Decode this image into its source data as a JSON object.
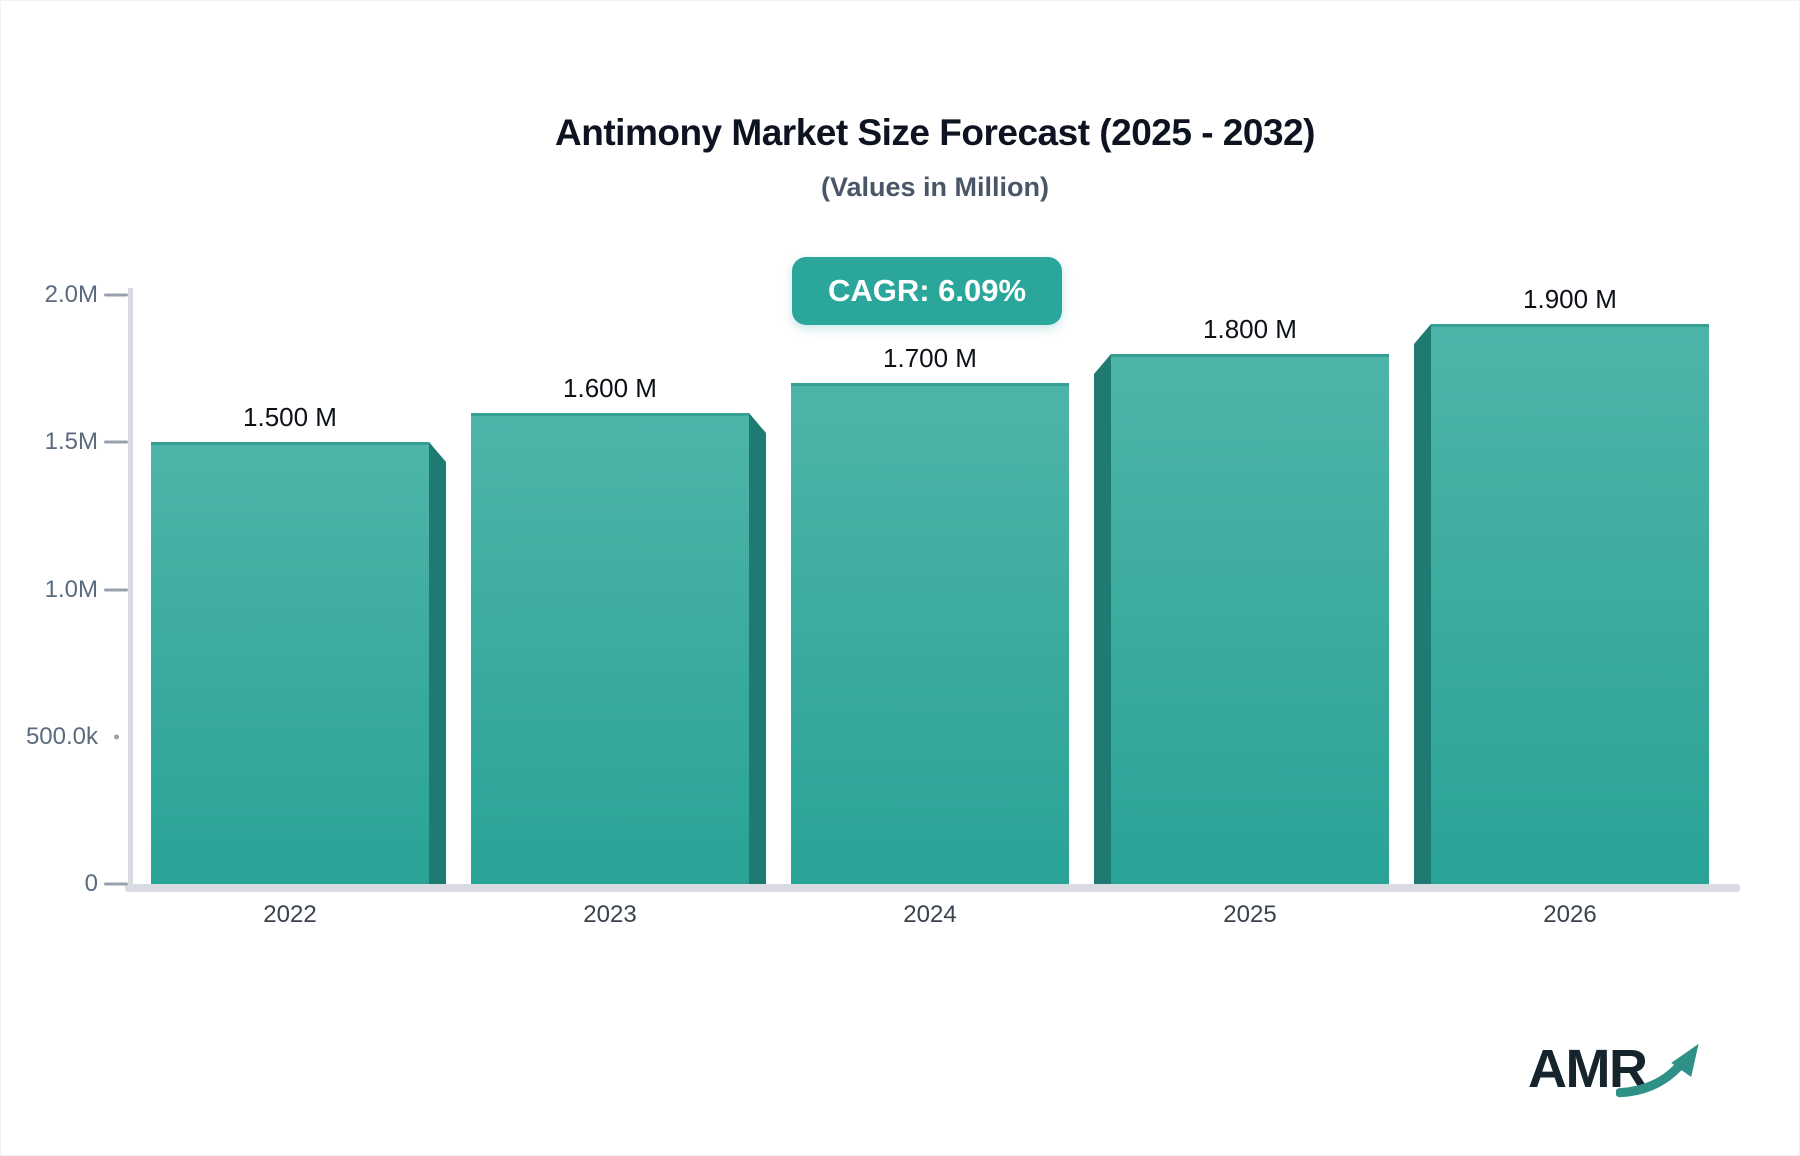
{
  "header": {
    "title": "Antimony Market Size Forecast (2025 - 2032)",
    "subtitle": "(Values in Million)"
  },
  "badge": {
    "label": "CAGR: 6.09%"
  },
  "logo": {
    "text": "AMR"
  },
  "colors": {
    "bar_gradient_top": "#4db5a8",
    "bar_gradient_bottom": "#29a396",
    "bar_side_face": "#1f7b72",
    "badge_bg": "#2aa79a",
    "axis_line": "#d8dce2",
    "y_tick_label": "#5b6b7d",
    "x_tick_label": "#39434f",
    "value_label": "#0c1117",
    "title": "#0d1320",
    "subtitle": "#4a5568",
    "logo_text": "#16242e",
    "logo_arrow": "#2e9086"
  },
  "chart_data": {
    "type": "bar",
    "title": "Antimony Market Size Forecast (2025 - 2032)",
    "subtitle": "(Values in Million)",
    "annotation": "CAGR: 6.09%",
    "categories": [
      "2022",
      "2023",
      "2024",
      "2025",
      "2026"
    ],
    "values": [
      1500000,
      1600000,
      1700000,
      1800000,
      1900000
    ],
    "value_labels": [
      "1.500 M",
      "1.600 M",
      "1.700 M",
      "1.800 M",
      "1.900 M"
    ],
    "y_ticks": [
      {
        "label": "2.0M",
        "value": 2000000
      },
      {
        "label": "1.5M",
        "value": 1500000
      },
      {
        "label": "1.0M",
        "value": 1000000
      },
      {
        "label": "500.0k",
        "value": 500000
      },
      {
        "label": "0",
        "value": 0
      }
    ],
    "ylim": [
      0,
      2000000
    ],
    "xlabel": "",
    "ylabel": "",
    "grid": false,
    "legend": "none",
    "bar_side_faces": [
      "right",
      "right",
      "none",
      "left",
      "left"
    ]
  }
}
